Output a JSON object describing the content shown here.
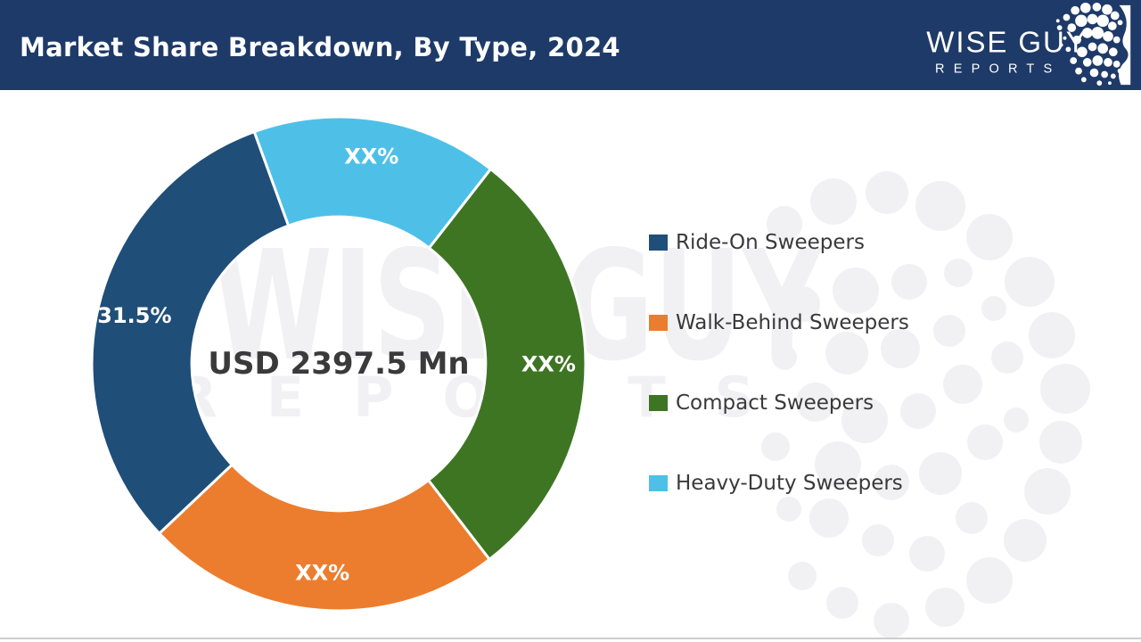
{
  "header": {
    "title": "Market Share Breakdown, By Type, 2024"
  },
  "logo": {
    "brand_top": "WISE GUY",
    "brand_bottom": "REPORTS"
  },
  "watermark": {
    "line1": "WISE GUY",
    "line2": "REPORTS"
  },
  "chart_data": {
    "type": "donut",
    "title": "Market Share Breakdown, By Type, 2024",
    "center_label": "USD 2397.5 Mn",
    "start_angle_deg": 110,
    "direction": "counterclockwise",
    "inner_radius_ratio": 0.595,
    "label_radius_ratio": 0.85,
    "legend_position": "right",
    "segments": [
      {
        "name": "Ride-On Sweepers",
        "value_pct": 31.5,
        "label": "31.5%",
        "color": "#1F4E78"
      },
      {
        "name": "Walk-Behind Sweepers",
        "value_pct": 23.4,
        "label": "XX%",
        "color": "#EC7D2E"
      },
      {
        "name": "Compact Sweepers",
        "value_pct": 29.0,
        "label": "XX%",
        "color": "#3E7523"
      },
      {
        "name": "Heavy-Duty Sweepers",
        "value_pct": 16.1,
        "label": "XX%",
        "color": "#4EC0E8"
      }
    ]
  },
  "colors": {
    "header_bg": "#1E3A68",
    "text_dark": "#3A3A3A",
    "watermark": "#F1F1F4",
    "slice_label": "#FFFFFF",
    "bottom_rule": "#CDCDCD"
  }
}
